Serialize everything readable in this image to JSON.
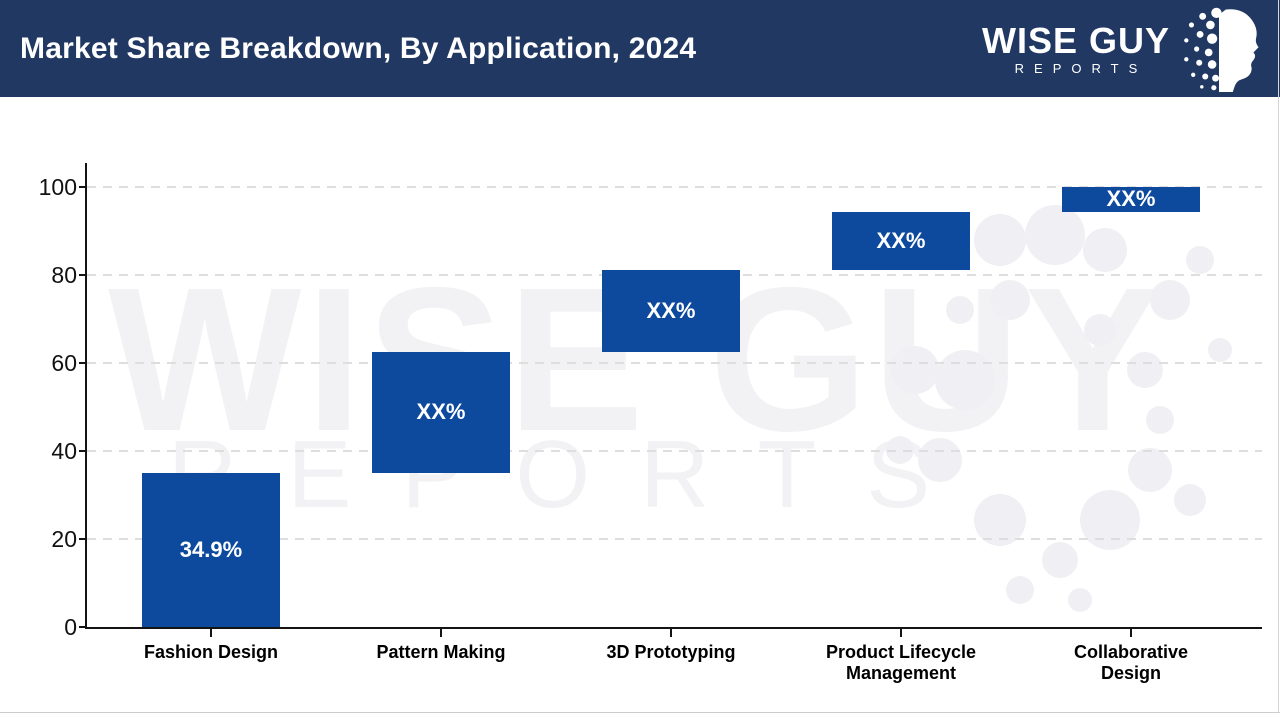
{
  "header": {
    "title": "Market Share Breakdown, By Application, 2024",
    "logo": {
      "line1": "WISE GUY",
      "line2": "REPORTS"
    }
  },
  "watermark": {
    "line1": "WISE GUY",
    "line2": "REPORTS"
  },
  "chart_data": {
    "type": "bar",
    "subtype": "waterfall",
    "title": "Market Share Breakdown, By Application, 2024",
    "categories": [
      "Fashion Design",
      "Pattern Making",
      "3D Prototyping",
      "Product Lifecycle Management",
      "Collaborative Design"
    ],
    "segments": [
      {
        "category": "Fashion Design",
        "start": 0,
        "end": 34.9,
        "label": "34.9%"
      },
      {
        "category": "Pattern Making",
        "start": 34.9,
        "end": 62.6,
        "label": "XX%"
      },
      {
        "category": "3D Prototyping",
        "start": 62.6,
        "end": 81.2,
        "label": "XX%"
      },
      {
        "category": "Product Lifecycle Management",
        "start": 81.2,
        "end": 94.4,
        "label": "XX%"
      },
      {
        "category": "Collaborative Design",
        "start": 94.4,
        "end": 100,
        "label": "XX%"
      }
    ],
    "yticks": [
      0,
      20,
      40,
      60,
      80,
      100
    ],
    "ylim": [
      0,
      105
    ],
    "xlabel": "",
    "ylabel": "",
    "grid": "horizontal-dashed",
    "legend": "none",
    "bar_color": "#0d4a9e",
    "value_label_color": "#ffffff",
    "header_color": "#213863"
  }
}
